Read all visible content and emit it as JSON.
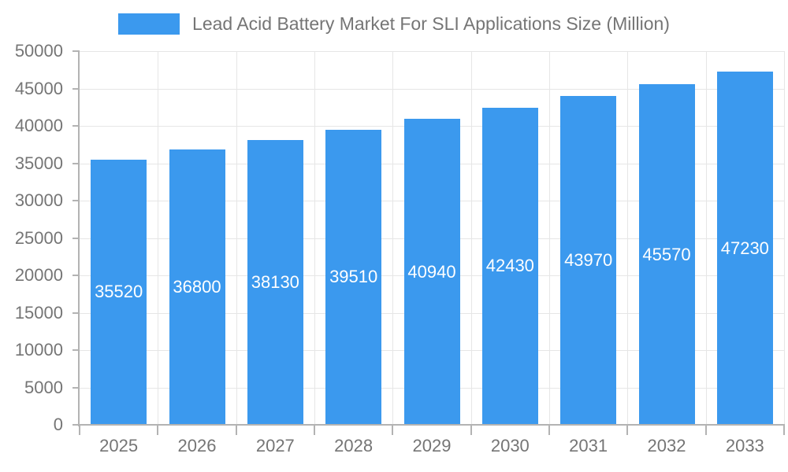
{
  "chart_data": {
    "type": "bar",
    "title": "Lead Acid Battery Market For SLI Applications Size (Million)",
    "legend": {
      "position": "top",
      "entries": [
        "Lead Acid Battery Market For SLI Applications Size (Million)"
      ]
    },
    "categories": [
      "2025",
      "2026",
      "2027",
      "2028",
      "2029",
      "2030",
      "2031",
      "2032",
      "2033"
    ],
    "series": [
      {
        "name": "Lead Acid Battery Market For SLI Applications Size (Million)",
        "values": [
          35520,
          36800,
          38130,
          39510,
          40940,
          42430,
          43970,
          45570,
          47230
        ]
      }
    ],
    "bar_value_labels": [
      "35520",
      "36800",
      "38130",
      "39510",
      "40940",
      "42430",
      "43970",
      "45570",
      "47230"
    ],
    "xlabel": "",
    "ylabel": "",
    "ylim": [
      0,
      50000
    ],
    "y_tick_step": 5000,
    "y_tick_labels": [
      "0",
      "5000",
      "10000",
      "15000",
      "20000",
      "25000",
      "30000",
      "35000",
      "40000",
      "45000",
      "50000"
    ],
    "grid": true,
    "colors": {
      "bar": "#3b99ee",
      "grid": "#e6e6e6",
      "axis": "#b3b3b3",
      "text": "#757575",
      "bar_label": "#ffffff",
      "background": "#ffffff"
    }
  }
}
